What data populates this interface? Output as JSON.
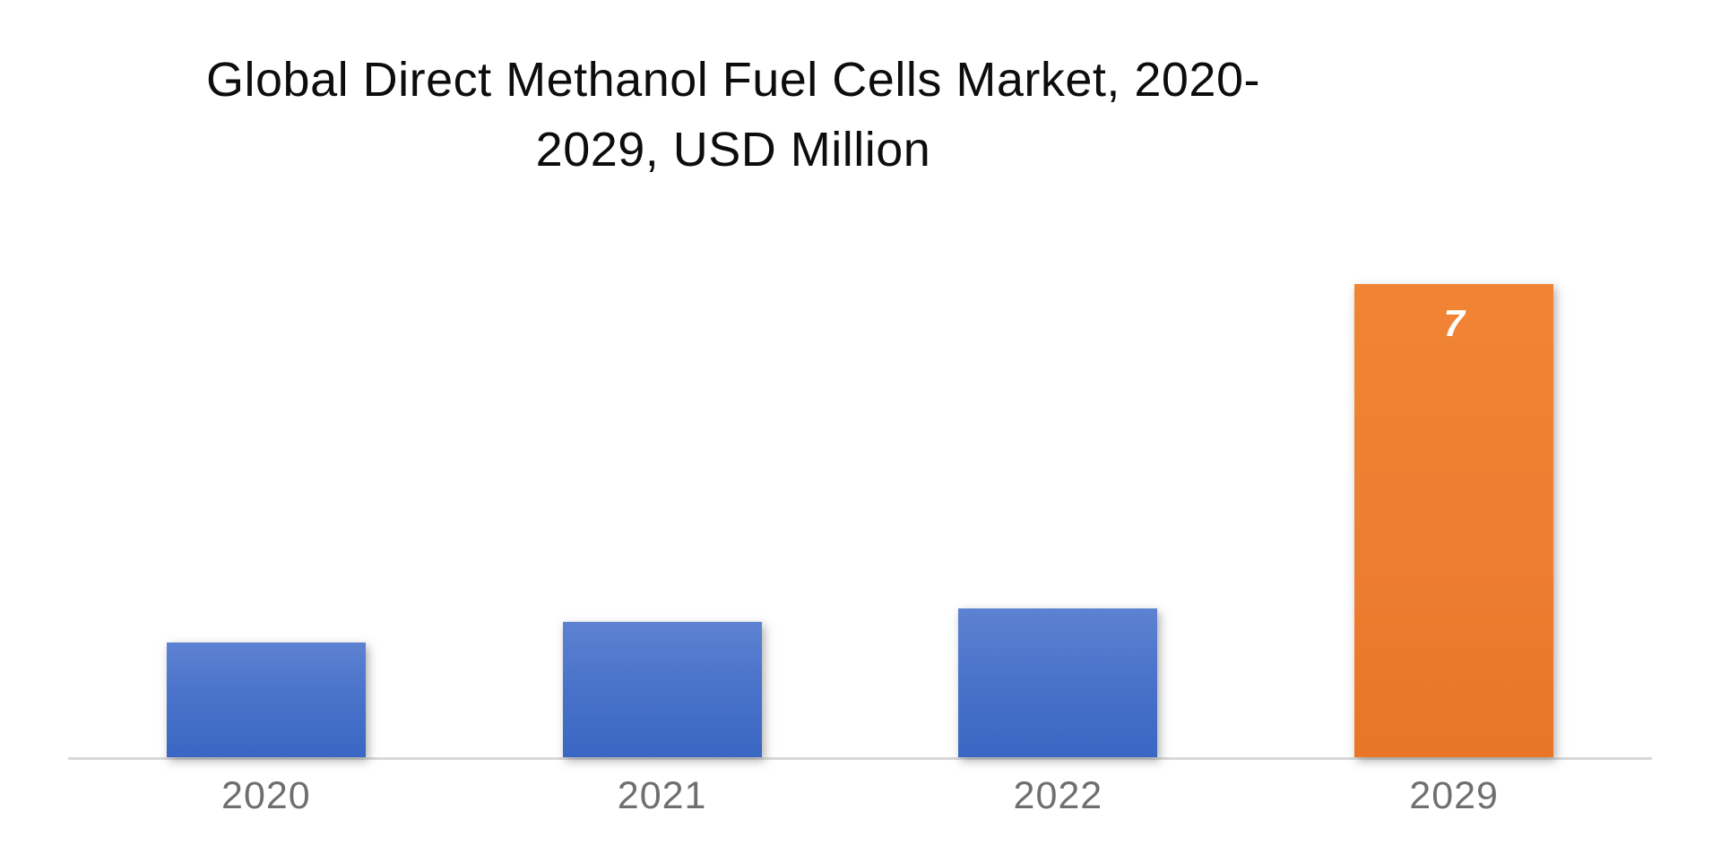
{
  "title": {
    "line1": "Global Direct Methanol Fuel Cells Market, 2020-",
    "line2": "2029, USD Million"
  },
  "chart_data": {
    "type": "bar",
    "title": "Global Direct Methanol Fuel Cells Market, 2020-2029, USD Million",
    "categories": [
      "2020",
      "2021",
      "2022",
      "2029"
    ],
    "values": [
      1.7,
      2.0,
      2.2,
      7
    ],
    "data_labels": [
      "",
      "",
      "",
      "7"
    ],
    "xlabel": "",
    "ylabel": "",
    "unit": "USD Million",
    "ylim": [
      0,
      7.8
    ],
    "grid": false,
    "legend": "none",
    "y_axis_visible": false,
    "bar_colors": [
      "#4472C4",
      "#4472C4",
      "#4472C4",
      "#ED7D31"
    ]
  },
  "colors": {
    "background": "#FFFFFF",
    "bar_primary": "#4472C4",
    "bar_accent": "#ED7D31",
    "axis_line": "#D9D9D9",
    "tick_label": "#6F6F6F",
    "title_text": "#0D0D0D",
    "data_label_text": "#FFFFFF"
  }
}
